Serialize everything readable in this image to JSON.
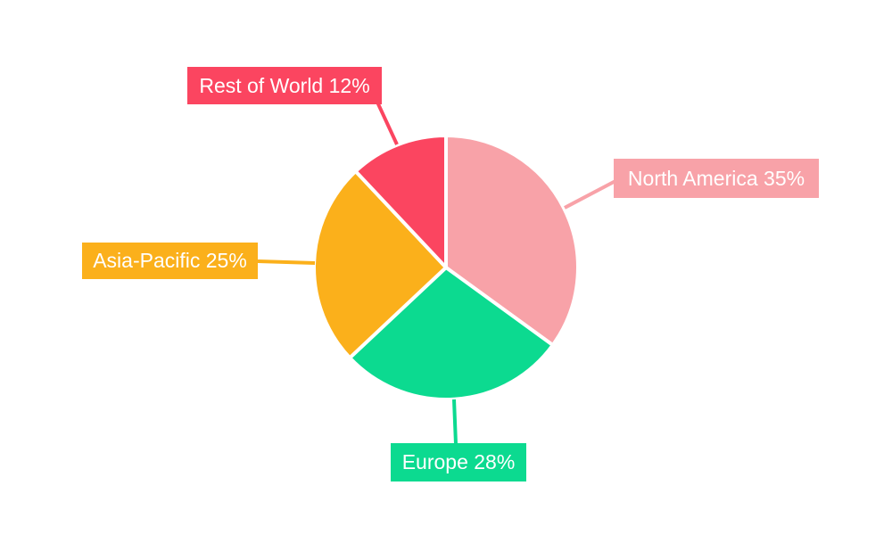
{
  "page": {
    "background_color": "#FFFFFF"
  },
  "chart_data": {
    "type": "pie",
    "title": "",
    "legend": "none",
    "label_style": "outside callout boxes with leader lines, box background matches slice color, white text",
    "start_angle_deg": 0,
    "direction": "clockwise",
    "categories": [
      "North America",
      "Europe",
      "Asia-Pacific",
      "Rest of World"
    ],
    "values": [
      35,
      28,
      25,
      12
    ],
    "unit": "%",
    "slices": [
      {
        "key": "north-america",
        "name": "North America",
        "value": 35,
        "label_text": "North America 35%",
        "color": "#F8A2A8"
      },
      {
        "key": "europe",
        "name": "Europe",
        "value": 28,
        "label_text": "Europe 28%",
        "color": "#0CDA90"
      },
      {
        "key": "asia-pacific",
        "name": "Asia-Pacific",
        "value": 25,
        "label_text": "Asia-Pacific 25%",
        "color": "#FBB01B"
      },
      {
        "key": "rest-of-world",
        "name": "Rest of World",
        "value": 12,
        "label_text": "Rest of World 12%",
        "color": "#FB4560"
      }
    ],
    "label_text_color": "#FFFFFF",
    "slice_separator_color": "#FFFFFF"
  }
}
